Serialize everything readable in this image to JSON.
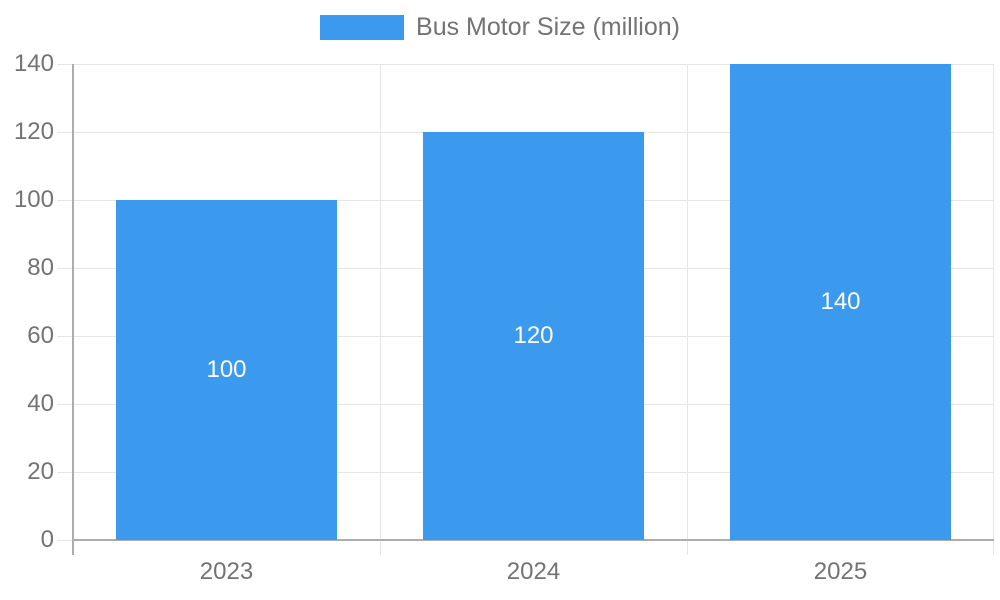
{
  "chart_data": {
    "type": "bar",
    "title": "",
    "xlabel": "",
    "ylabel": "",
    "categories": [
      "2023",
      "2024",
      "2025"
    ],
    "series": [
      {
        "name": "Bus Motor Size (million)",
        "values": [
          100,
          120,
          140
        ],
        "color": "#3B9AEE"
      }
    ],
    "bar_value_labels": [
      "100",
      "120",
      "140"
    ],
    "ylim": [
      0,
      140
    ],
    "yticks": [
      0,
      20,
      40,
      60,
      80,
      100,
      120,
      140
    ],
    "grid": "horizontal gridlines plus vertical category-boundary lines and right plot border",
    "legend": {
      "position": "top-center",
      "label": "Bus Motor Size (million)",
      "swatch_color": "#3B9AEE"
    },
    "colors": {
      "bar": "#3B9AEE",
      "grid_line": "#E6E6E6",
      "axis_line": "#ADADAD",
      "axis_text": "#737373",
      "bar_label_text": "#FFFFFF",
      "background": "#FFFFFF"
    }
  }
}
